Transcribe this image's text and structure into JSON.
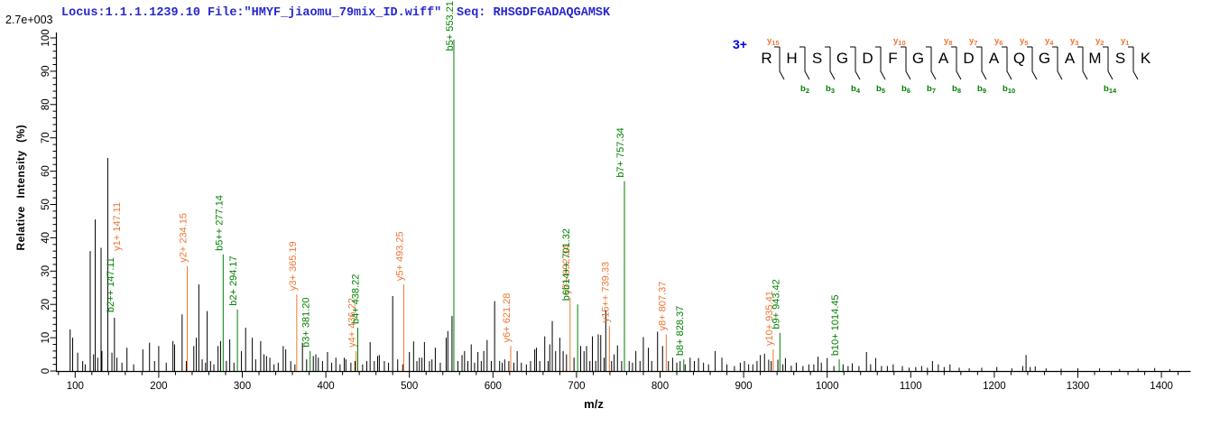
{
  "header": {
    "locus_text": "Locus:1.1.1.1239.10 File:\"HMYF_jiaomu_79mix_ID.wiff\"",
    "seq_label": "Seq: RHSGDFGADAQGAMSK",
    "intensity_scale": "2.7e+003"
  },
  "colors": {
    "b_ion": "#008000",
    "y_ion": "#ee7633",
    "header_blue": "#2727cc",
    "charge_blue": "#0000e8",
    "axis": "#000000",
    "peak": "#000000"
  },
  "sequence_panel": {
    "charge_label": "3+",
    "residues": [
      "R",
      "H",
      "S",
      "G",
      "D",
      "F",
      "G",
      "A",
      "D",
      "A",
      "Q",
      "G",
      "A",
      "M",
      "S",
      "K"
    ],
    "gaps": [
      {
        "y": "y15"
      },
      {
        "b": "b2"
      },
      {
        "b": "b3"
      },
      {
        "b": "b4"
      },
      {
        "b": "b5"
      },
      {
        "y": "y10",
        "b": "b6"
      },
      {
        "b": "b7"
      },
      {
        "y": "y8",
        "b": "b8"
      },
      {
        "y": "y7",
        "b": "b9"
      },
      {
        "y": "y6",
        "b": "b10"
      },
      {
        "y": "y5"
      },
      {
        "y": "y4"
      },
      {
        "y": "y3"
      },
      {
        "y": "y2",
        "b": "b14"
      },
      {
        "y": "y1"
      }
    ]
  },
  "chart_data": {
    "type": "bar",
    "subtype": "ms2-centroid-mass-spectrum",
    "xlabel": "m/z",
    "ylabel": "Relative  Intensity (%)",
    "xlim": [
      77,
      1435
    ],
    "ylim": [
      0,
      100
    ],
    "x_major_ticks": [
      100,
      200,
      300,
      400,
      500,
      600,
      700,
      800,
      900,
      1000,
      1100,
      1200,
      1300,
      1400
    ],
    "x_minor_step": 20,
    "y_major_step": 10,
    "y_minor_step": 2,
    "base_peak_intensity_label": "2.7e+003",
    "grid": false,
    "legend": false,
    "annotated_peaks": [
      {
        "label": "y1+ 147.11",
        "ion": "y",
        "mz": 147.11,
        "line": 0,
        "label_h": 35,
        "dx": 7
      },
      {
        "label": "b2++ 147.11",
        "ion": "b",
        "mz": 147.11,
        "line": 0,
        "label_h": 16.5
      },
      {
        "label": "y2+ 234.15",
        "ion": "y",
        "mz": 234.15,
        "line": 31.5,
        "label_h": 31.5
      },
      {
        "label": "b5++ 277.14",
        "ion": "b",
        "mz": 277.14,
        "line": 35,
        "label_h": 35
      },
      {
        "label": "b2+ 294.17",
        "ion": "b",
        "mz": 294.17,
        "line": 18.5,
        "label_h": 18.5
      },
      {
        "label": "y3+ 365.19",
        "ion": "y",
        "mz": 365.19,
        "line": 23,
        "label_h": 23
      },
      {
        "label": "b3+ 381.20",
        "ion": "b",
        "mz": 381.2,
        "line": 6,
        "label_h": 6
      },
      {
        "label": "y4+ 436.22",
        "ion": "y",
        "mz": 436.22,
        "line": 6,
        "label_h": 6
      },
      {
        "label": "b4+ 438.22",
        "ion": "b",
        "mz": 438.22,
        "line": 13,
        "label_h": 13,
        "dx": 2
      },
      {
        "label": "y5+ 493.25",
        "ion": "y",
        "mz": 493.25,
        "line": 26,
        "label_h": 26
      },
      {
        "label": "b5+ 553.21",
        "ion": "b",
        "mz": 553.21,
        "line": 99.5,
        "label_h": 95
      },
      {
        "label": "y6+ 621.28",
        "ion": "y",
        "mz": 621.28,
        "line": 7.5,
        "label_h": 7.5
      },
      {
        "label": "y7+ 692.34",
        "ion": "y",
        "mz": 692.34,
        "line": 22,
        "label_h": 22
      },
      {
        "label": "b6b14++ 701.32",
        "ion": "b",
        "mz": 701.32,
        "line": 20,
        "label_h": 20,
        "dx": -8
      },
      {
        "label": "y15++ 739.33",
        "ion": "y",
        "mz": 739.33,
        "line": 13.5,
        "label_h": 13.5
      },
      {
        "label": "b7+ 757.34",
        "ion": "b",
        "mz": 757.34,
        "line": 57,
        "label_h": 57
      },
      {
        "label": "y8+ 807.37",
        "ion": "y",
        "mz": 807.37,
        "line": 11,
        "label_h": 11
      },
      {
        "label": "b8+ 828.37",
        "ion": "b",
        "mz": 828.37,
        "line": 3.5,
        "label_h": 3.5
      },
      {
        "label": "y10+ 935.41",
        "ion": "y",
        "mz": 935.41,
        "line": 6.5,
        "label_h": 6.5
      },
      {
        "label": "b9+ 943.42",
        "ion": "b",
        "mz": 943.42,
        "line": 11.5,
        "label_h": 11.5
      },
      {
        "label": "b10+ 1014.45",
        "ion": "b",
        "mz": 1014.45,
        "line": 3.5,
        "label_h": 3.5
      }
    ],
    "background_peaks": [
      [
        94,
        12.5
      ],
      [
        97,
        10
      ],
      [
        103,
        5.5
      ],
      [
        109,
        3
      ],
      [
        112,
        2
      ],
      [
        118,
        36
      ],
      [
        122,
        5
      ],
      [
        124,
        45.5
      ],
      [
        127,
        4
      ],
      [
        131,
        37
      ],
      [
        132,
        6
      ],
      [
        139,
        64
      ],
      [
        144,
        5.5
      ],
      [
        147,
        16
      ],
      [
        150,
        4
      ],
      [
        156,
        2.5
      ],
      [
        162,
        7
      ],
      [
        170,
        2
      ],
      [
        181,
        6.5
      ],
      [
        189,
        8.5
      ],
      [
        195,
        3
      ],
      [
        200,
        7.5
      ],
      [
        209,
        2.5
      ],
      [
        217,
        9
      ],
      [
        219,
        8
      ],
      [
        228,
        17
      ],
      [
        233,
        3
      ],
      [
        242,
        7.5
      ],
      [
        245,
        10
      ],
      [
        248,
        26
      ],
      [
        252,
        3.5
      ],
      [
        256,
        2.5
      ],
      [
        258,
        18
      ],
      [
        262,
        3
      ],
      [
        266,
        2
      ],
      [
        271,
        7.5
      ],
      [
        274,
        9
      ],
      [
        281,
        3
      ],
      [
        285,
        9.5
      ],
      [
        290,
        2.5
      ],
      [
        299,
        6
      ],
      [
        304,
        13
      ],
      [
        312,
        10
      ],
      [
        316,
        3.5
      ],
      [
        322,
        9
      ],
      [
        326,
        5
      ],
      [
        329,
        4.5
      ],
      [
        333,
        4
      ],
      [
        338,
        2
      ],
      [
        343,
        2.5
      ],
      [
        349,
        7.5
      ],
      [
        352,
        6.5
      ],
      [
        358,
        3
      ],
      [
        363,
        2
      ],
      [
        372,
        8.5
      ],
      [
        377,
        3.5
      ],
      [
        385,
        4.5
      ],
      [
        388,
        5
      ],
      [
        391,
        4
      ],
      [
        396,
        3
      ],
      [
        402,
        5.7
      ],
      [
        407,
        2.5
      ],
      [
        412,
        4
      ],
      [
        417,
        2
      ],
      [
        422,
        4
      ],
      [
        424,
        3.5
      ],
      [
        430,
        2.5
      ],
      [
        435,
        3
      ],
      [
        444,
        2
      ],
      [
        449,
        3
      ],
      [
        453,
        8.7
      ],
      [
        458,
        3
      ],
      [
        462,
        4.5
      ],
      [
        464,
        4.8
      ],
      [
        470,
        3
      ],
      [
        475,
        2.5
      ],
      [
        480,
        22.5
      ],
      [
        486,
        3.5
      ],
      [
        492,
        2
      ],
      [
        500,
        5.7
      ],
      [
        505,
        8.9
      ],
      [
        509,
        3
      ],
      [
        512,
        4
      ],
      [
        515,
        4
      ],
      [
        518,
        8.7
      ],
      [
        524,
        3
      ],
      [
        527,
        3.5
      ],
      [
        531,
        7
      ],
      [
        537,
        2.5
      ],
      [
        544,
        10
      ],
      [
        546,
        12
      ],
      [
        551,
        16.5
      ],
      [
        558,
        3
      ],
      [
        563,
        4.8
      ],
      [
        566,
        6
      ],
      [
        570,
        3
      ],
      [
        574,
        8
      ],
      [
        578,
        2.5
      ],
      [
        582,
        5.7
      ],
      [
        586,
        3
      ],
      [
        589,
        6
      ],
      [
        593,
        9.3
      ],
      [
        598,
        3
      ],
      [
        602,
        21
      ],
      [
        608,
        3
      ],
      [
        611,
        2.5
      ],
      [
        614,
        3.5
      ],
      [
        619,
        3
      ],
      [
        625,
        2.5
      ],
      [
        629,
        6
      ],
      [
        634,
        2.5
      ],
      [
        640,
        2
      ],
      [
        645,
        3
      ],
      [
        650,
        6.5
      ],
      [
        652,
        7
      ],
      [
        656,
        3
      ],
      [
        662,
        10.4
      ],
      [
        666,
        3
      ],
      [
        668,
        8
      ],
      [
        671,
        15
      ],
      [
        675,
        6
      ],
      [
        680,
        10
      ],
      [
        684,
        6
      ],
      [
        688,
        5
      ],
      [
        697,
        4
      ],
      [
        705,
        7.5
      ],
      [
        709,
        6
      ],
      [
        712,
        7.5
      ],
      [
        716,
        3
      ],
      [
        719,
        10.4
      ],
      [
        723,
        3
      ],
      [
        726,
        11
      ],
      [
        729,
        10.8
      ],
      [
        733,
        4
      ],
      [
        735,
        18.3
      ],
      [
        742,
        3
      ],
      [
        745,
        5
      ],
      [
        749,
        7.7
      ],
      [
        754,
        3
      ],
      [
        763,
        3
      ],
      [
        767,
        2.5
      ],
      [
        771,
        6
      ],
      [
        776,
        3
      ],
      [
        780,
        10.2
      ],
      [
        786,
        7
      ],
      [
        790,
        3
      ],
      [
        797,
        11.8
      ],
      [
        803,
        7.5
      ],
      [
        810,
        3
      ],
      [
        815,
        4
      ],
      [
        820,
        2.5
      ],
      [
        824,
        3
      ],
      [
        830,
        2
      ],
      [
        836,
        4
      ],
      [
        841,
        3
      ],
      [
        846,
        3.9
      ],
      [
        852,
        2.5
      ],
      [
        858,
        2
      ],
      [
        866,
        6
      ],
      [
        874,
        4
      ],
      [
        880,
        2
      ],
      [
        889,
        1.5
      ],
      [
        896,
        2.5
      ],
      [
        901,
        3
      ],
      [
        906,
        2
      ],
      [
        911,
        2
      ],
      [
        916,
        3
      ],
      [
        920,
        4.8
      ],
      [
        925,
        5.2
      ],
      [
        930,
        3.4
      ],
      [
        933,
        3
      ],
      [
        941,
        3.4
      ],
      [
        947,
        2
      ],
      [
        950,
        3.9
      ],
      [
        957,
        1.6
      ],
      [
        963,
        2.5
      ],
      [
        971,
        1.5
      ],
      [
        978,
        2
      ],
      [
        984,
        2
      ],
      [
        989,
        4.3
      ],
      [
        993,
        2.5
      ],
      [
        1000,
        3.9
      ],
      [
        1008,
        1.5
      ],
      [
        1019,
        2
      ],
      [
        1025,
        1.5
      ],
      [
        1030,
        2.3
      ],
      [
        1038,
        1.5
      ],
      [
        1047,
        5.7
      ],
      [
        1052,
        2
      ],
      [
        1058,
        3.9
      ],
      [
        1065,
        1.5
      ],
      [
        1072,
        1.5
      ],
      [
        1079,
        2
      ],
      [
        1090,
        1.5
      ],
      [
        1098,
        1
      ],
      [
        1106,
        1.2
      ],
      [
        1113,
        1.5
      ],
      [
        1120,
        1
      ],
      [
        1126,
        3
      ],
      [
        1133,
        2
      ],
      [
        1140,
        1.2
      ],
      [
        1147,
        2
      ],
      [
        1158,
        1
      ],
      [
        1170,
        0.8
      ],
      [
        1185,
        1
      ],
      [
        1203,
        1.2
      ],
      [
        1221,
        0.8
      ],
      [
        1234,
        1.5
      ],
      [
        1238,
        4.8
      ],
      [
        1243,
        1.2
      ],
      [
        1249,
        1.4
      ],
      [
        1262,
        0.8
      ],
      [
        1280,
        0.7
      ],
      [
        1300,
        0.8
      ],
      [
        1326,
        0.8
      ],
      [
        1350,
        0.6
      ],
      [
        1372,
        0.7
      ],
      [
        1392,
        0.9
      ],
      [
        1410,
        0.6
      ]
    ]
  }
}
